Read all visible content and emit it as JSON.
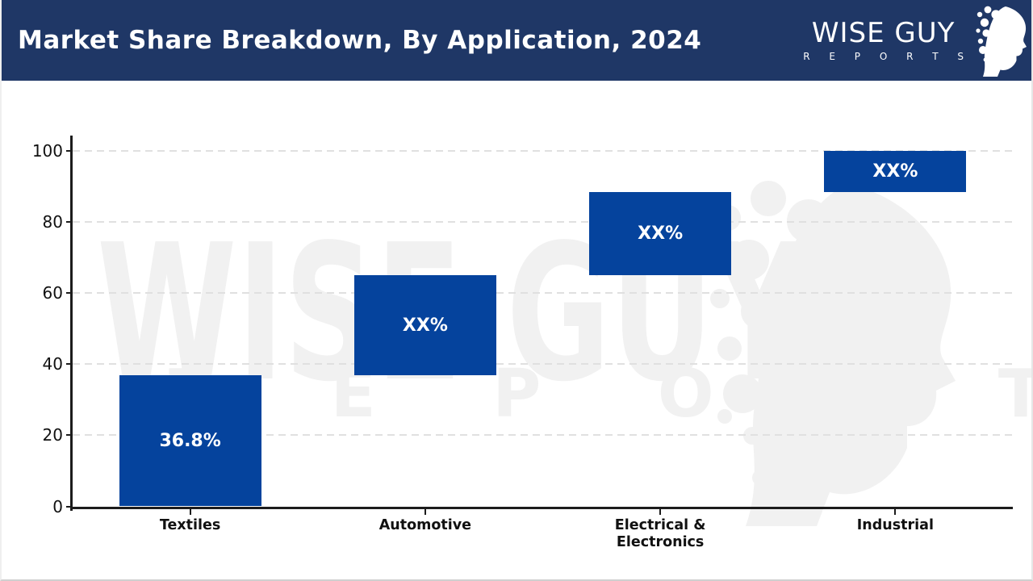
{
  "header": {
    "title": "Market Share Breakdown, By Application, 2024",
    "logo": {
      "line1": "WISE GUY",
      "line2": "R E P O R T S"
    }
  },
  "watermark": {
    "line1": "WISE GUY",
    "line2": "R E P O R T S"
  },
  "colors": {
    "header_bg": "#1f3766",
    "title_text": "#ffffff",
    "bar": "#05439d",
    "bar_label": "#ffffff",
    "axis": "#1c1c1c",
    "grid": "#e0e0e0",
    "watermark": "#f1f1f1"
  },
  "chart_data": {
    "type": "bar",
    "subtype": "floating-waterfall",
    "title": "Market Share Breakdown, By Application, 2024",
    "categories": [
      "Textiles",
      "Automotive",
      "Electrical & Electronics",
      "Industrial"
    ],
    "category_display": [
      "Textiles",
      "Automotive",
      "Electrical &\nElectronics",
      "Industrial"
    ],
    "segments": [
      {
        "category": "Textiles",
        "start": 0,
        "end": 36.8,
        "label": "36.8%"
      },
      {
        "category": "Automotive",
        "start": 36.8,
        "end": 65.0,
        "label": "XX%"
      },
      {
        "category": "Electrical & Electronics",
        "start": 65.0,
        "end": 88.3,
        "label": "XX%"
      },
      {
        "category": "Industrial",
        "start": 88.3,
        "end": 100,
        "label": "XX%"
      }
    ],
    "y_ticks": [
      0,
      20,
      40,
      60,
      80,
      100
    ],
    "ylim": [
      0,
      100
    ],
    "xlabel": "",
    "ylabel": "",
    "grid": "horizontal dashed",
    "legend": "none"
  }
}
